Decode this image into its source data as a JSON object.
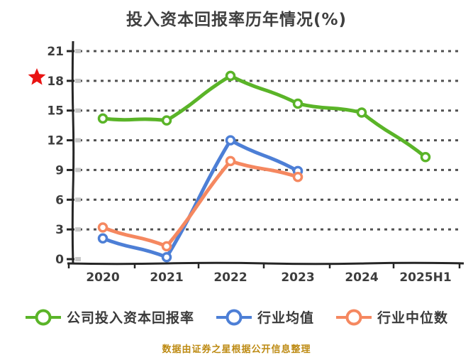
{
  "title": "投入资本回报率历年情况(%)",
  "watermark": {
    "caption": "数据由证券之星根据公开信息整理",
    "logo": "red-star",
    "logo_color": "#e91312",
    "caption_color": "#bd8a12"
  },
  "chart_data": {
    "type": "line",
    "title": "投入资本回报率历年情况(%)",
    "categories": [
      "2020",
      "2021",
      "2022",
      "2023",
      "2024",
      "2025H1"
    ],
    "series": [
      {
        "name": "公司投入资本回报率",
        "color": "#5ab428",
        "values": [
          14.2,
          14.0,
          18.5,
          15.7,
          14.8,
          10.3
        ]
      },
      {
        "name": "行业均值",
        "color": "#4d7fd6",
        "values": [
          2.1,
          0.2,
          12.0,
          8.9,
          null,
          null
        ]
      },
      {
        "name": "行业中位数",
        "color": "#f58860",
        "values": [
          3.2,
          1.3,
          9.9,
          8.3,
          null,
          null
        ]
      }
    ],
    "xlabel": "",
    "ylabel": "",
    "ylim": [
      0,
      21
    ],
    "yticks": [
      0,
      3,
      6,
      9,
      12,
      15,
      18,
      21
    ],
    "grid": "horizontal-dashed",
    "grid_color": "#3f3f3f",
    "axis_color": "#262626",
    "tick_label_color": "#3d3d3d",
    "marker": "circle-white-fill",
    "legend_position": "bottom",
    "style": "xkcd-sketch"
  }
}
